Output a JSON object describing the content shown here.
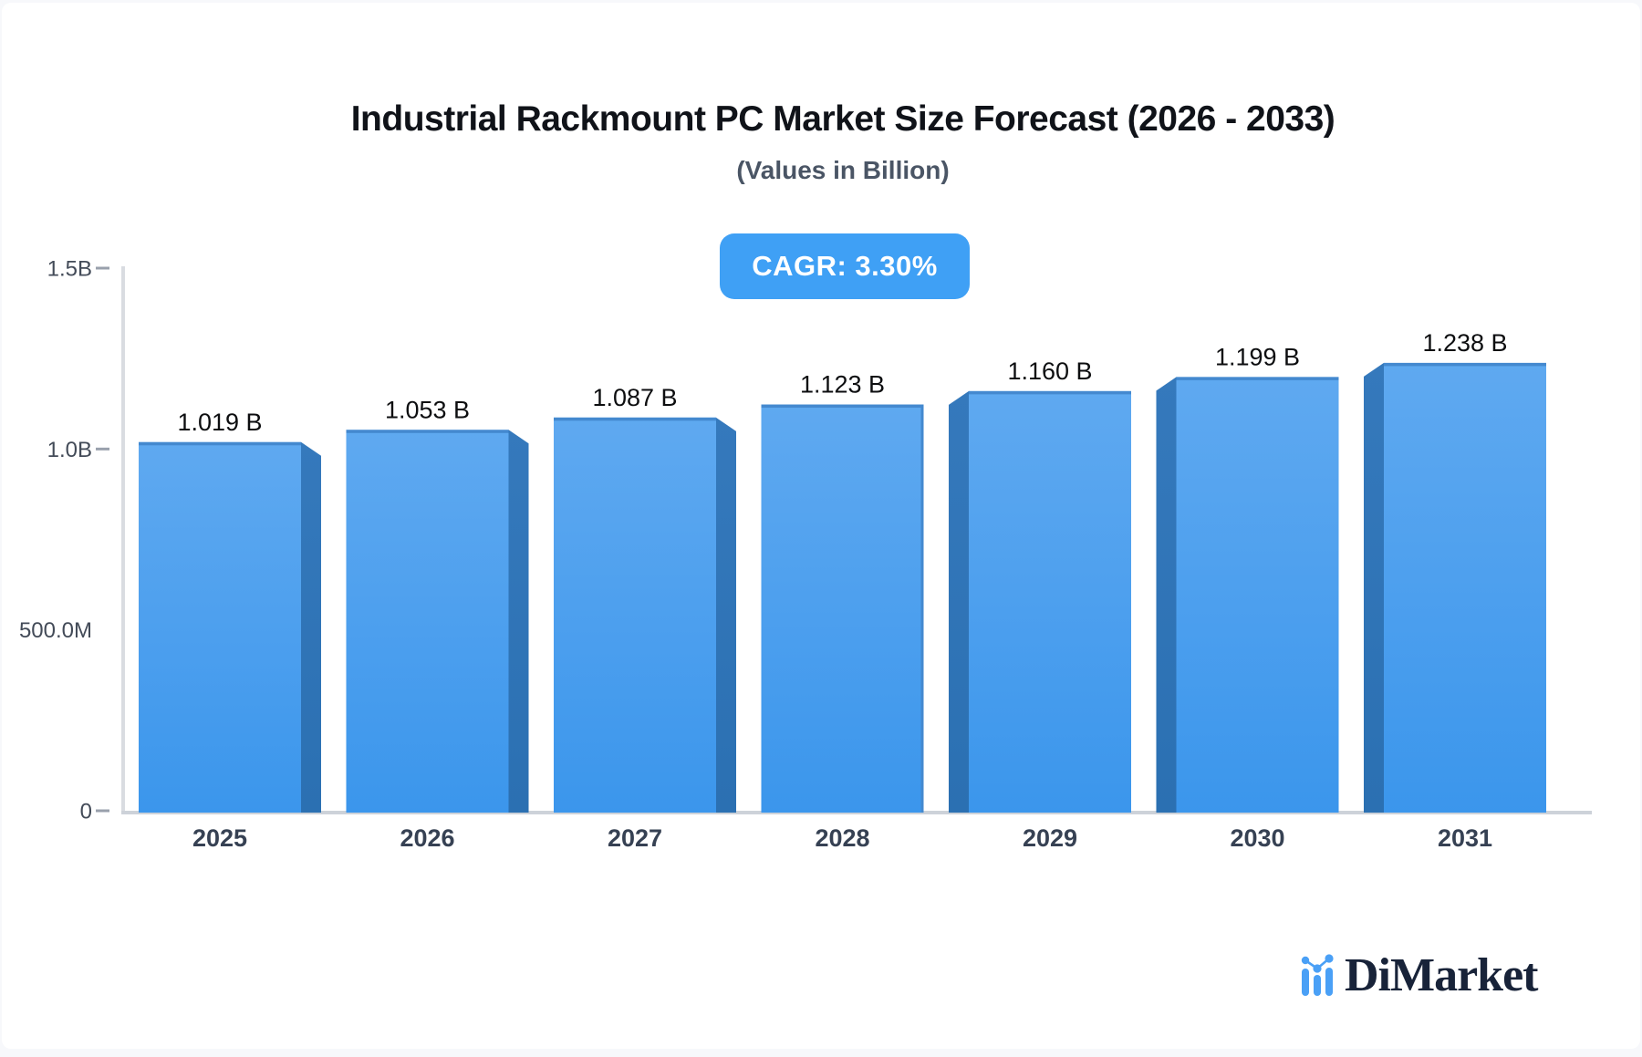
{
  "chart_data": {
    "type": "bar",
    "title": "Industrial Rackmount PC Market Size Forecast (2026 - 2033)",
    "subtitle": "(Values in Billion)",
    "cagr_badge": "CAGR: 3.30%",
    "categories": [
      "2025",
      "2026",
      "2027",
      "2028",
      "2029",
      "2030",
      "2031"
    ],
    "values": [
      1.019,
      1.053,
      1.087,
      1.123,
      1.16,
      1.199,
      1.238
    ],
    "value_labels": [
      "1.019 B",
      "1.053 B",
      "1.087 B",
      "1.123 B",
      "1.160 B",
      "1.199 B",
      "1.238 B"
    ],
    "unit": "Billion",
    "y_axis": {
      "range": [
        0,
        1.5
      ],
      "ticks": [
        {
          "label": "1.5B",
          "value": 1.5,
          "dash": true
        },
        {
          "label": "1.0B",
          "value": 1.0,
          "dash": true
        },
        {
          "label": "500.0M",
          "value": 0.5,
          "dash": false
        },
        {
          "label": "0",
          "value": 0,
          "dash": true
        }
      ]
    },
    "grid": false,
    "legend": false,
    "bar_style": "3d-bevel"
  },
  "colors": {
    "accent_blue": "#3FA0F5",
    "bar_face_top": "#5FA9F0",
    "bar_face_bottom": "#3B96EC",
    "bar_side_top": "#3579BC",
    "bar_side_bottom": "#2B70B2",
    "bar_edge": "#4489CF",
    "axis_line": "#D9DCE1",
    "baseline": "#CDD2D9",
    "tick": "#99A0AC",
    "title_color": "#101319",
    "subtitle_color": "#4A5565",
    "value_label_color": "#0D0E10",
    "year_label_color": "#364153",
    "ytick_color": "#434B58",
    "logo_text_color": "#182339",
    "logo_icon_color": "#4AA0F6",
    "page_bg": "#F7F8FB",
    "card_bg": "#FFFFFF"
  },
  "footer": {
    "brand": "DiMarket"
  }
}
